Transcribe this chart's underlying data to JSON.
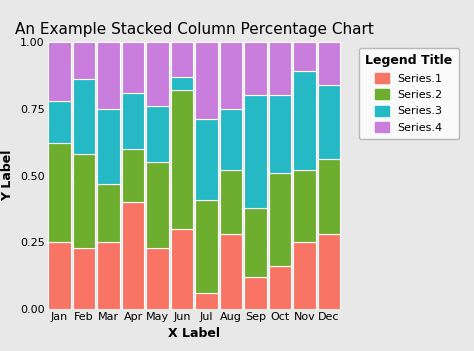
{
  "title": "An Example Stacked Column Percentage Chart",
  "xlabel": "X Label",
  "ylabel": "Y Label",
  "legend_title": "Legend Title",
  "categories": [
    "Jan",
    "Feb",
    "Mar",
    "Apr",
    "May",
    "Jun",
    "Jul",
    "Aug",
    "Sep",
    "Oct",
    "Nov",
    "Dec"
  ],
  "series": {
    "Series.1": [
      0.25,
      0.23,
      0.25,
      0.4,
      0.23,
      0.3,
      0.06,
      0.28,
      0.12,
      0.16,
      0.25,
      0.28
    ],
    "Series.2": [
      0.37,
      0.35,
      0.22,
      0.2,
      0.32,
      0.52,
      0.35,
      0.24,
      0.26,
      0.35,
      0.27,
      0.28
    ],
    "Series.3": [
      0.16,
      0.28,
      0.28,
      0.21,
      0.21,
      0.05,
      0.3,
      0.23,
      0.42,
      0.29,
      0.37,
      0.28
    ],
    "Series.4": [
      0.22,
      0.14,
      0.25,
      0.19,
      0.24,
      0.13,
      0.29,
      0.25,
      0.2,
      0.2,
      0.11,
      0.16
    ]
  },
  "colors": {
    "Series.1": "#F87566",
    "Series.2": "#6DAE2F",
    "Series.3": "#25B9C5",
    "Series.4": "#C97DDC"
  },
  "ylim": [
    0,
    1.0
  ],
  "bg_color": "#E8E8E8",
  "panel_color": "#E8E8E8",
  "grid_color": "#FFFFFF",
  "title_fontsize": 11,
  "axis_label_fontsize": 9,
  "tick_fontsize": 8,
  "legend_title_fontsize": 9,
  "legend_fontsize": 8,
  "bar_width": 0.92
}
